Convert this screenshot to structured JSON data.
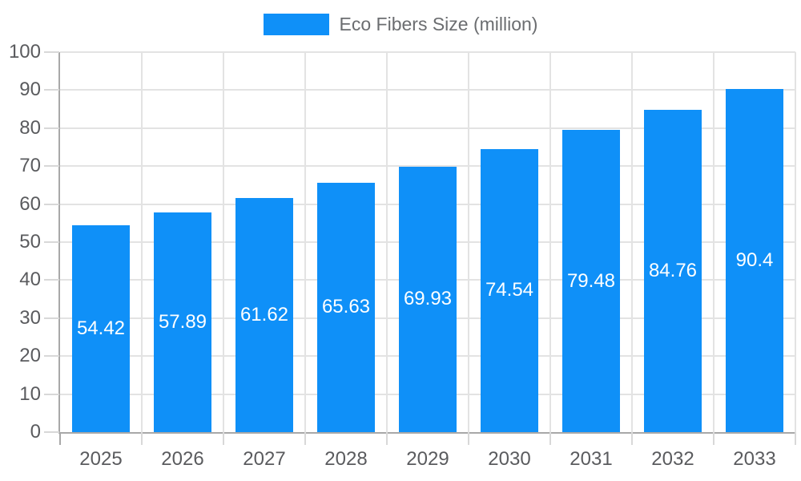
{
  "chart_data": {
    "type": "bar",
    "series_name": "Eco Fibers Size (million)",
    "categories": [
      "2025",
      "2026",
      "2027",
      "2028",
      "2029",
      "2030",
      "2031",
      "2032",
      "2033"
    ],
    "values": [
      54.42,
      57.89,
      61.62,
      65.63,
      69.93,
      74.54,
      79.48,
      84.76,
      90.4
    ],
    "xlabel": "",
    "ylabel": "",
    "ylim": [
      0,
      100
    ],
    "ytick_step": 10,
    "grid": true,
    "legend_position": "top",
    "value_labels_position": "inside-center",
    "bar_color": "#0f90f8",
    "label_color": "#ffffff",
    "axis_text_color": "#5a5b5e",
    "legend_text_color": "#6b6d70",
    "grid_color": "#e3e3e3",
    "tick_color": "#d8d8d8",
    "axis_line_color": "#a8a8a8",
    "background_color": "#ffffff",
    "bar_width_fraction": 0.714
  }
}
